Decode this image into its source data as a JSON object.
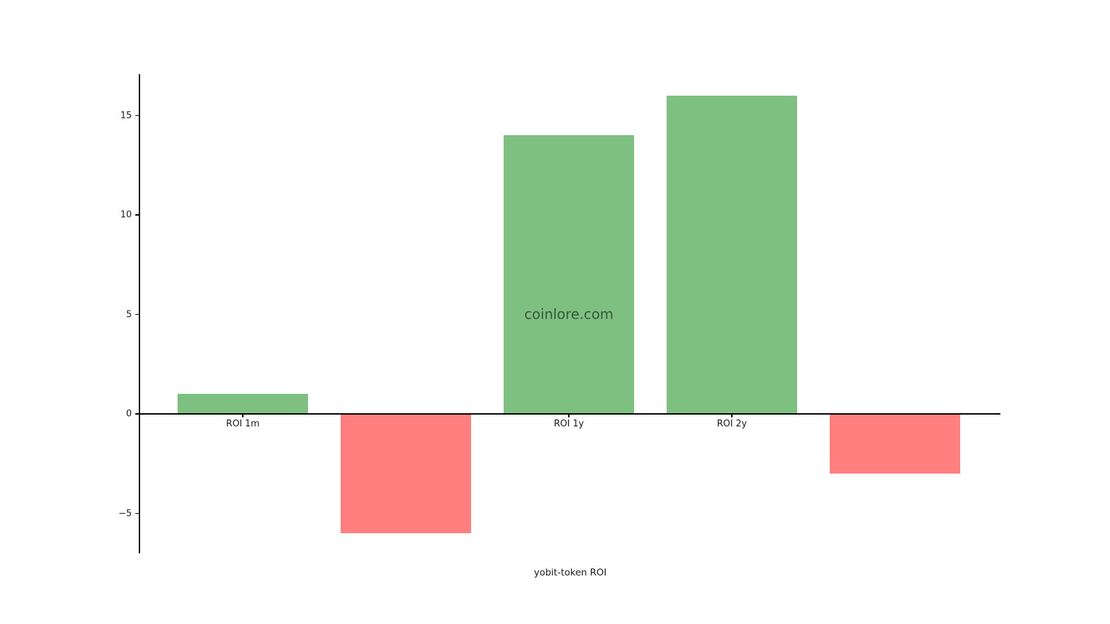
{
  "chart_data": {
    "type": "bar",
    "title": "yobit-token ROI",
    "watermark": "coinlore.com",
    "categories": [
      "ROI 1m",
      "",
      "ROI 1y",
      "ROI 2y",
      ""
    ],
    "values": [
      1,
      -6,
      14,
      16,
      -3
    ],
    "yticks": [
      15,
      10,
      5,
      0,
      -5
    ],
    "ylim": [
      -7,
      17.1
    ],
    "xlabel": "",
    "ylabel": "",
    "grid": false,
    "legend": "none",
    "colors": {
      "positive_bar": "#7dc07f",
      "negative_bar": "#ff7f7f",
      "axis": "#000000",
      "tick_text": "#1a1a1a"
    }
  }
}
